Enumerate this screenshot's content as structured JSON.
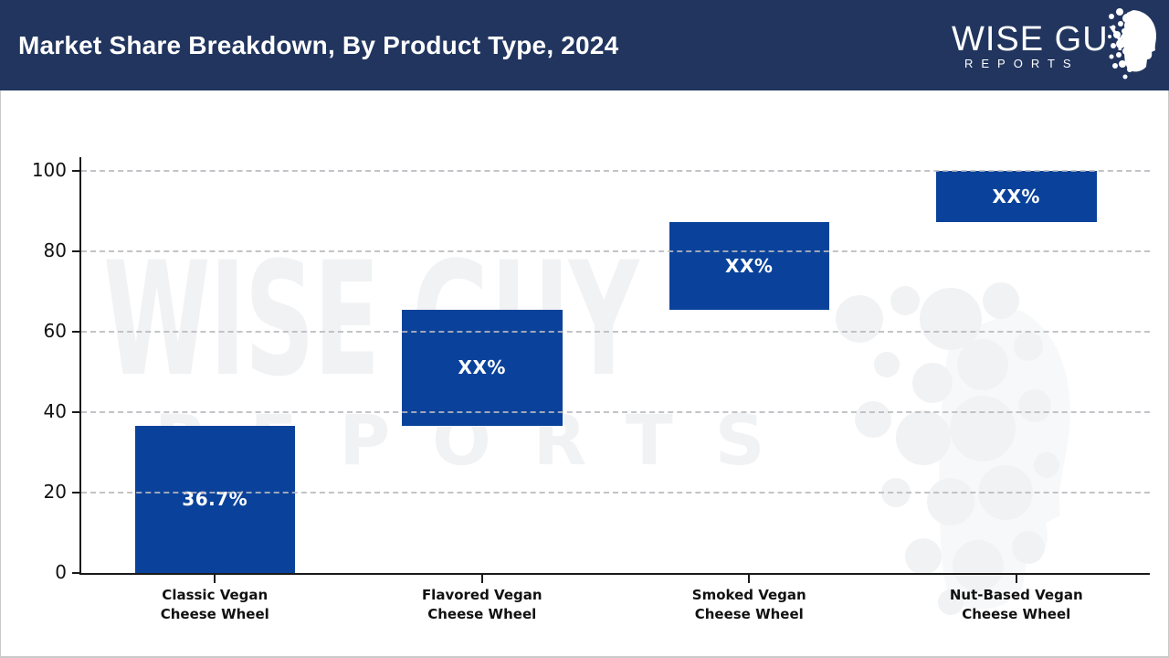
{
  "header": {
    "title": "Market Share Breakdown, By Product Type, 2024",
    "logo": {
      "line1": "WISE GUY",
      "line2": "REPORTS"
    }
  },
  "watermark": {
    "line1": "WISE GUY",
    "line2": "REPORTS"
  },
  "colors": {
    "header_bg": "#21355f",
    "bar": "#0a429b",
    "grid": "#d8d8d8",
    "axis": "#1a1a1a",
    "watermark": "#f1f2f4",
    "bar_label": "#ffffff"
  },
  "chart_data": {
    "type": "bar",
    "subtype": "waterfall",
    "title": "Market Share Breakdown, By Product Type, 2024",
    "categories": [
      "Classic Vegan Cheese Wheel",
      "Flavored Vegan Cheese Wheel",
      "Smoked Vegan Cheese Wheel",
      "Nut-Based Vegan Cheese Wheel"
    ],
    "category_lines": [
      [
        "Classic Vegan",
        "Cheese Wheel"
      ],
      [
        "Flavored Vegan",
        "Cheese Wheel"
      ],
      [
        "Smoked Vegan",
        "Cheese Wheel"
      ],
      [
        "Nut-Based Vegan",
        "Cheese Wheel"
      ]
    ],
    "bars": [
      {
        "start": 0,
        "end": 36.7,
        "label": "36.7%"
      },
      {
        "start": 36.7,
        "end": 65.4,
        "label": "XX%"
      },
      {
        "start": 65.4,
        "end": 87.2,
        "label": "XX%"
      },
      {
        "start": 87.2,
        "end": 100,
        "label": "XX%"
      }
    ],
    "ylim": [
      0,
      100
    ],
    "yticks": [
      0,
      20,
      40,
      60,
      80,
      100
    ],
    "grid": "horizontal-dashed",
    "legend": "none",
    "bar_color": "#0a429b",
    "bar_label_color": "#ffffff"
  }
}
